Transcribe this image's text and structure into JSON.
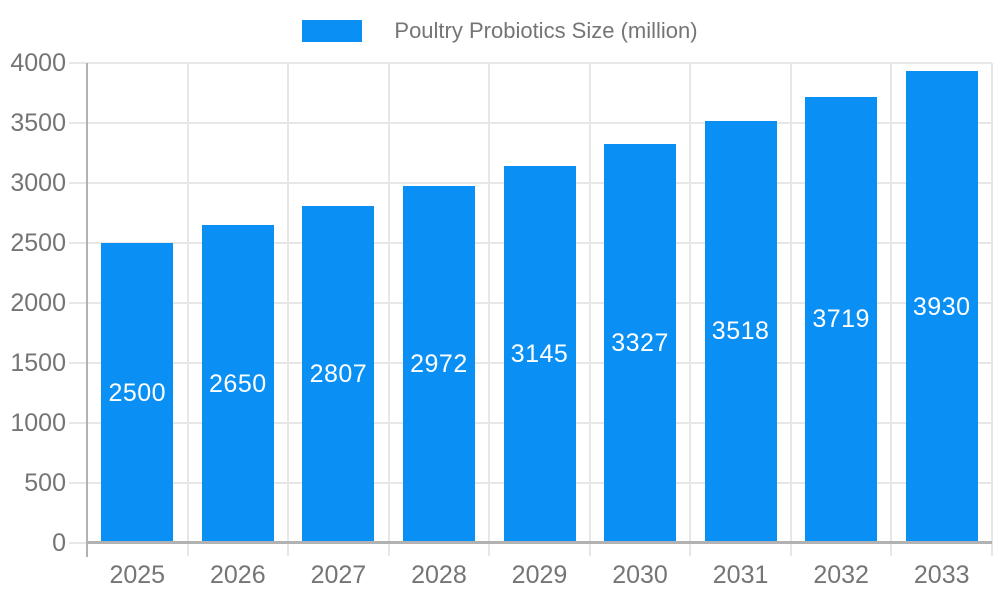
{
  "legend": {
    "label": "Poultry Probiotics Size (million)"
  },
  "chart_data": {
    "type": "bar",
    "title": "Poultry Probiotics Size (million)",
    "series_name": "Poultry Probiotics Size (million)",
    "categories": [
      "2025",
      "2026",
      "2027",
      "2028",
      "2029",
      "2030",
      "2031",
      "2032",
      "2033"
    ],
    "values": [
      2500,
      2650,
      2807,
      2972,
      3145,
      3327,
      3518,
      3719,
      3930
    ],
    "value_labels": [
      "2500",
      "2650",
      "2807",
      "2972",
      "3145",
      "3327",
      "3518",
      "3719",
      "3930"
    ],
    "xlabel": "",
    "ylabel": "",
    "ylim": [
      0,
      4000
    ],
    "yticks": [
      0,
      500,
      1000,
      1500,
      2000,
      2500,
      3000,
      3500,
      4000
    ],
    "grid": "both",
    "legend_position": "top-center",
    "colors": {
      "bar": "#0a90f5",
      "value_label": "#ffffff",
      "axis_text": "#757575",
      "gridline": "#e7e7e7",
      "axis_line": "#b2b2b2"
    }
  }
}
